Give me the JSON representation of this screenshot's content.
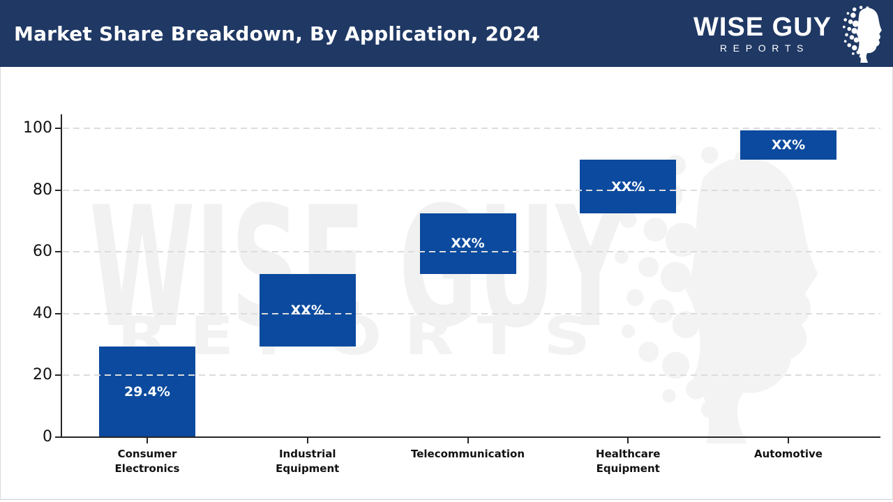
{
  "header": {
    "title": "Market Share Breakdown, By Application, 2024",
    "logo": {
      "brand_line1": "WISE GUY",
      "brand_line2": "REPORTS"
    }
  },
  "watermark": {
    "line1": "WISE GUY",
    "line2": "R E P O R T S"
  },
  "chart_data": {
    "type": "bar",
    "subtype": "waterfall",
    "title": "Market Share Breakdown, By Application, 2024",
    "categories": [
      "Consumer Electronics",
      "Industrial Equipment",
      "Telecommunication",
      "Healthcare Equipment",
      "Automotive"
    ],
    "category_label_lines": [
      [
        "Consumer",
        "Electronics"
      ],
      [
        "Industrial",
        "Equipment"
      ],
      [
        "Telecommunication"
      ],
      [
        "Healthcare",
        "Equipment"
      ],
      [
        "Automotive"
      ]
    ],
    "segments": [
      {
        "category": "Consumer Electronics",
        "start": 0,
        "end": 29.4,
        "label": "29.4%"
      },
      {
        "category": "Industrial Equipment",
        "start": 29.4,
        "end": 52.9,
        "label": "XX%"
      },
      {
        "category": "Telecommunication",
        "start": 52.9,
        "end": 72.4,
        "label": "XX%"
      },
      {
        "category": "Healthcare Equipment",
        "start": 72.4,
        "end": 89.8,
        "label": "XX%"
      },
      {
        "category": "Automotive",
        "start": 89.8,
        "end": 99.3,
        "label": "XX%"
      }
    ],
    "xlabel": "",
    "ylabel": "",
    "yticks": [
      0,
      20,
      40,
      60,
      80,
      100
    ],
    "ylim": [
      0,
      105
    ],
    "grid": "horizontal-dashed",
    "legend": "none",
    "bar_color": "#0b4a9e",
    "bar_label_color": "#ffffff"
  },
  "colors": {
    "header_bg": "#1f3864",
    "bar": "#0b4a9e",
    "axis": "#262626",
    "grid": "#dcdcdc",
    "watermark": "#f1f1f1",
    "frame_border": "#d9d9d9",
    "text": "#111111"
  }
}
